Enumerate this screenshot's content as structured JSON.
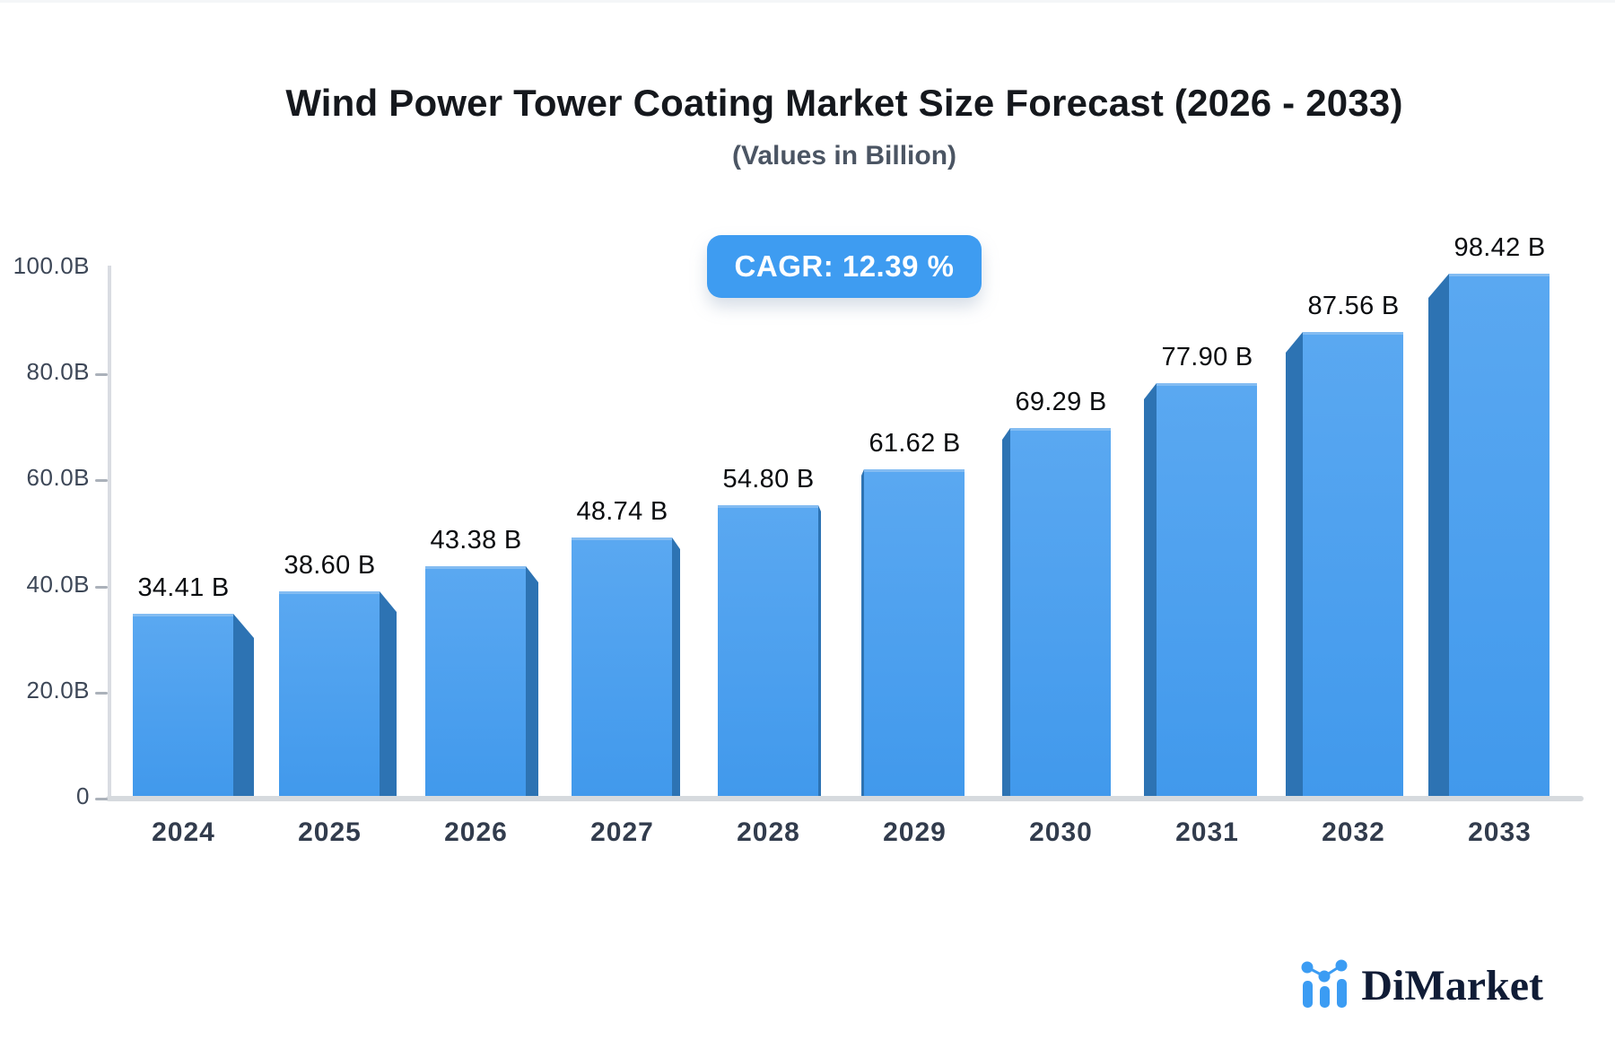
{
  "header": {
    "title": "Wind Power Tower Coating Market Size Forecast (2026 - 2033)",
    "subtitle": "(Values in Billion)"
  },
  "cagr_badge": {
    "label": "CAGR: 12.39 %"
  },
  "chart_data": {
    "type": "bar",
    "title": "Wind Power Tower Coating Market Size Forecast (2026 - 2033)",
    "subtitle": "(Values in Billion)",
    "categories": [
      "2024",
      "2025",
      "2026",
      "2027",
      "2028",
      "2029",
      "2030",
      "2031",
      "2032",
      "2033"
    ],
    "values": [
      34.41,
      38.6,
      43.38,
      48.74,
      54.8,
      61.62,
      69.29,
      77.9,
      87.56,
      98.42
    ],
    "value_labels": [
      "34.41 B",
      "38.60 B",
      "43.38 B",
      "48.74 B",
      "54.80 B",
      "61.62 B",
      "69.29 B",
      "77.90 B",
      "87.56 B",
      "98.42 B"
    ],
    "ylim": [
      0,
      100
    ],
    "yticks": [
      {
        "value": 100,
        "label": "100.0B",
        "dash": false
      },
      {
        "value": 80,
        "label": "80.0B",
        "dash": true
      },
      {
        "value": 60,
        "label": "60.0B",
        "dash": true
      },
      {
        "value": 40,
        "label": "40.0B",
        "dash": true
      },
      {
        "value": 20,
        "label": "20.0B",
        "dash": true
      },
      {
        "value": 0,
        "label": "0",
        "dash": true
      }
    ],
    "grid": false,
    "legend": null,
    "style": "3d-perspective-bars",
    "colors": {
      "bar_face_top": "#5AA8F1",
      "bar_face_bottom": "#4199EC",
      "bar_side": "#2D73B3",
      "badge_background": "#3E9CF1",
      "badge_text": "#FFFFFF",
      "axis": "#D9DCE2",
      "value_label_text": "#0B0D10",
      "tick_label_text": "#3D4757"
    }
  },
  "footer": {
    "brand": "DiMarket",
    "logo_icon": "mini-bar-chart-icon",
    "logo_icon_color": "#3B9CF3",
    "brand_color": "#101C36"
  }
}
